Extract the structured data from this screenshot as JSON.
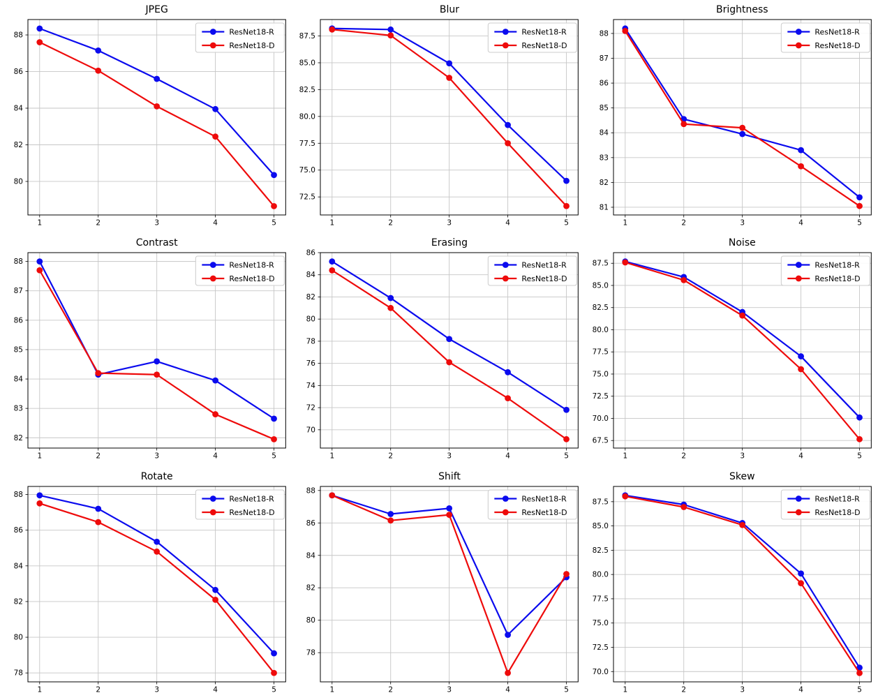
{
  "figure": {
    "background": "#ffffff",
    "grid_color": "#c6c6c6",
    "axis_color": "#000000",
    "tick_label_color": "#000000",
    "series_colors": {
      "resnet18_r": "#0b0bee",
      "resnet18_d": "#ee0b0b"
    },
    "legend": {
      "position": "upper right",
      "labels": [
        "ResNet18-R",
        "ResNet18-D"
      ]
    }
  },
  "chart_data": [
    {
      "type": "line",
      "title": "JPEG",
      "x": [
        1,
        2,
        3,
        4,
        5
      ],
      "xtick_labels": [
        "1",
        "2",
        "3",
        "4",
        "5"
      ],
      "series": [
        {
          "name": "ResNet18-R",
          "color": "#0b0bee",
          "values": [
            88.35,
            87.15,
            85.6,
            83.95,
            80.35
          ]
        },
        {
          "name": "ResNet18-D",
          "color": "#ee0b0b",
          "values": [
            87.6,
            86.05,
            84.1,
            82.45,
            78.65
          ]
        }
      ],
      "ylim": [
        78.17,
        88.84
      ],
      "yticks": [
        80,
        82,
        84,
        86,
        88
      ],
      "ytick_labels": [
        "80",
        "82",
        "84",
        "86",
        "88"
      ],
      "xlim": [
        0.8,
        5.2
      ],
      "grid": true,
      "legend_position": "upper right"
    },
    {
      "type": "line",
      "title": "Blur",
      "x": [
        1,
        2,
        3,
        4,
        5
      ],
      "xtick_labels": [
        "1",
        "2",
        "3",
        "4",
        "5"
      ],
      "series": [
        {
          "name": "ResNet18-R",
          "color": "#0b0bee",
          "values": [
            88.2,
            88.1,
            84.95,
            79.2,
            74.0
          ]
        },
        {
          "name": "ResNet18-D",
          "color": "#ee0b0b",
          "values": [
            88.1,
            87.55,
            83.6,
            77.5,
            71.65
          ]
        }
      ],
      "ylim": [
        70.82,
        89.03
      ],
      "yticks": [
        72.5,
        75.0,
        77.5,
        80.0,
        82.5,
        85.0,
        87.5
      ],
      "ytick_labels": [
        "72.5",
        "75.0",
        "77.5",
        "80.0",
        "82.5",
        "85.0",
        "87.5"
      ],
      "xlim": [
        0.8,
        5.2
      ],
      "grid": true,
      "legend_position": "upper right"
    },
    {
      "type": "line",
      "title": "Brightness",
      "x": [
        1,
        2,
        3,
        4,
        5
      ],
      "xtick_labels": [
        "1",
        "2",
        "3",
        "4",
        "5"
      ],
      "series": [
        {
          "name": "ResNet18-R",
          "color": "#0b0bee",
          "values": [
            88.2,
            84.55,
            83.95,
            83.3,
            81.4
          ]
        },
        {
          "name": "ResNet18-D",
          "color": "#ee0b0b",
          "values": [
            88.1,
            84.35,
            84.2,
            82.65,
            81.05
          ]
        }
      ],
      "ylim": [
        80.69,
        88.56
      ],
      "yticks": [
        81,
        82,
        83,
        84,
        85,
        86,
        87,
        88
      ],
      "ytick_labels": [
        "81",
        "82",
        "83",
        "84",
        "85",
        "86",
        "87",
        "88"
      ],
      "xlim": [
        0.8,
        5.2
      ],
      "grid": true,
      "legend_position": "upper right"
    },
    {
      "type": "line",
      "title": "Contrast",
      "x": [
        1,
        2,
        3,
        4,
        5
      ],
      "xtick_labels": [
        "1",
        "2",
        "3",
        "4",
        "5"
      ],
      "series": [
        {
          "name": "ResNet18-R",
          "color": "#0b0bee",
          "values": [
            88.0,
            84.15,
            84.6,
            83.95,
            82.65
          ]
        },
        {
          "name": "ResNet18-D",
          "color": "#ee0b0b",
          "values": [
            87.7,
            84.2,
            84.15,
            82.8,
            81.95
          ]
        }
      ],
      "ylim": [
        81.65,
        88.3
      ],
      "yticks": [
        82,
        83,
        84,
        85,
        86,
        87,
        88
      ],
      "ytick_labels": [
        "82",
        "83",
        "84",
        "85",
        "86",
        "87",
        "88"
      ],
      "xlim": [
        0.8,
        5.2
      ],
      "grid": true,
      "legend_position": "upper right"
    },
    {
      "type": "line",
      "title": "Erasing",
      "x": [
        1,
        2,
        3,
        4,
        5
      ],
      "xtick_labels": [
        "1",
        "2",
        "3",
        "4",
        "5"
      ],
      "series": [
        {
          "name": "ResNet18-R",
          "color": "#0b0bee",
          "values": [
            85.2,
            81.9,
            78.2,
            75.2,
            71.8
          ]
        },
        {
          "name": "ResNet18-D",
          "color": "#ee0b0b",
          "values": [
            84.4,
            81.0,
            76.1,
            72.85,
            69.15
          ]
        }
      ],
      "ylim": [
        68.35,
        86.0
      ],
      "yticks": [
        70,
        72,
        74,
        76,
        78,
        80,
        82,
        84,
        86
      ],
      "ytick_labels": [
        "70",
        "72",
        "74",
        "76",
        "78",
        "80",
        "82",
        "84",
        "86"
      ],
      "xlim": [
        0.8,
        5.2
      ],
      "grid": true,
      "legend_position": "upper right"
    },
    {
      "type": "line",
      "title": "Noise",
      "x": [
        1,
        2,
        3,
        4,
        5
      ],
      "xtick_labels": [
        "1",
        "2",
        "3",
        "4",
        "5"
      ],
      "series": [
        {
          "name": "ResNet18-R",
          "color": "#0b0bee",
          "values": [
            87.7,
            85.95,
            82.0,
            77.0,
            70.1
          ]
        },
        {
          "name": "ResNet18-D",
          "color": "#ee0b0b",
          "values": [
            87.6,
            85.6,
            81.6,
            75.55,
            67.65
          ]
        }
      ],
      "ylim": [
        66.65,
        88.7
      ],
      "yticks": [
        67.5,
        70.0,
        72.5,
        75.0,
        77.5,
        80.0,
        82.5,
        85.0,
        87.5
      ],
      "ytick_labels": [
        "67.5",
        "70.0",
        "72.5",
        "75.0",
        "77.5",
        "80.0",
        "82.5",
        "85.0",
        "87.5"
      ],
      "xlim": [
        0.8,
        5.2
      ],
      "grid": true,
      "legend_position": "upper right"
    },
    {
      "type": "line",
      "title": "Rotate",
      "x": [
        1,
        2,
        3,
        4,
        5
      ],
      "xtick_labels": [
        "1",
        "2",
        "3",
        "4",
        "5"
      ],
      "series": [
        {
          "name": "ResNet18-R",
          "color": "#0b0bee",
          "values": [
            87.95,
            87.2,
            85.35,
            82.65,
            79.1
          ]
        },
        {
          "name": "ResNet18-D",
          "color": "#ee0b0b",
          "values": [
            87.5,
            86.45,
            84.8,
            82.1,
            78.0
          ]
        }
      ],
      "ylim": [
        77.5,
        88.45
      ],
      "yticks": [
        78,
        80,
        82,
        84,
        86,
        88
      ],
      "ytick_labels": [
        "78",
        "80",
        "82",
        "84",
        "86",
        "88"
      ],
      "xlim": [
        0.8,
        5.2
      ],
      "grid": true,
      "legend_position": "upper right"
    },
    {
      "type": "line",
      "title": "Shift",
      "x": [
        1,
        2,
        3,
        4,
        5
      ],
      "xtick_labels": [
        "1",
        "2",
        "3",
        "4",
        "5"
      ],
      "series": [
        {
          "name": "ResNet18-R",
          "color": "#0b0bee",
          "values": [
            87.7,
            86.55,
            86.9,
            79.1,
            82.65
          ]
        },
        {
          "name": "ResNet18-D",
          "color": "#ee0b0b",
          "values": [
            87.7,
            86.15,
            86.5,
            76.75,
            82.85
          ]
        }
      ],
      "ylim": [
        76.2,
        88.25
      ],
      "yticks": [
        78,
        80,
        82,
        84,
        86,
        88
      ],
      "ytick_labels": [
        "78",
        "80",
        "82",
        "84",
        "86",
        "88"
      ],
      "xlim": [
        0.8,
        5.2
      ],
      "grid": true,
      "legend_position": "upper right"
    },
    {
      "type": "line",
      "title": "Skew",
      "x": [
        1,
        2,
        3,
        4,
        5
      ],
      "xtick_labels": [
        "1",
        "2",
        "3",
        "4",
        "5"
      ],
      "series": [
        {
          "name": "ResNet18-R",
          "color": "#0b0bee",
          "values": [
            88.15,
            87.2,
            85.3,
            80.1,
            70.4
          ]
        },
        {
          "name": "ResNet18-D",
          "color": "#ee0b0b",
          "values": [
            88.05,
            86.95,
            85.1,
            79.1,
            69.85
          ]
        }
      ],
      "ylim": [
        68.94,
        89.07
      ],
      "yticks": [
        70.0,
        72.5,
        75.0,
        77.5,
        80.0,
        82.5,
        85.0,
        87.5
      ],
      "ytick_labels": [
        "70.0",
        "72.5",
        "75.0",
        "77.5",
        "80.0",
        "82.5",
        "85.0",
        "87.5"
      ],
      "xlim": [
        0.8,
        5.2
      ],
      "grid": true,
      "legend_position": "upper right"
    }
  ]
}
